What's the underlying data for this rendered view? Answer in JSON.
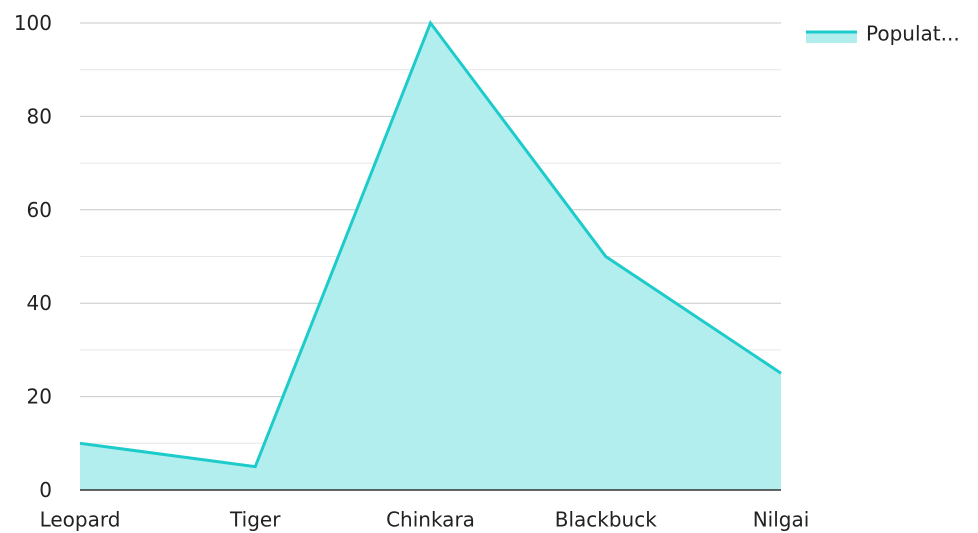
{
  "chart_data": {
    "type": "area",
    "categories": [
      "Leopard",
      "Tiger",
      "Chinkara",
      "Blackbuck",
      "Nilgai"
    ],
    "series": [
      {
        "name": "Populat...",
        "values": [
          10,
          5,
          100,
          50,
          25
        ],
        "line_color": "#1ecbcb",
        "fill_color": "#b2eeed"
      }
    ],
    "ylim": [
      0,
      100
    ],
    "y_ticks": [
      0,
      20,
      40,
      60,
      80,
      100
    ],
    "grid": true,
    "legend_position": "top-right",
    "title": "",
    "xlabel": "",
    "ylabel": ""
  }
}
